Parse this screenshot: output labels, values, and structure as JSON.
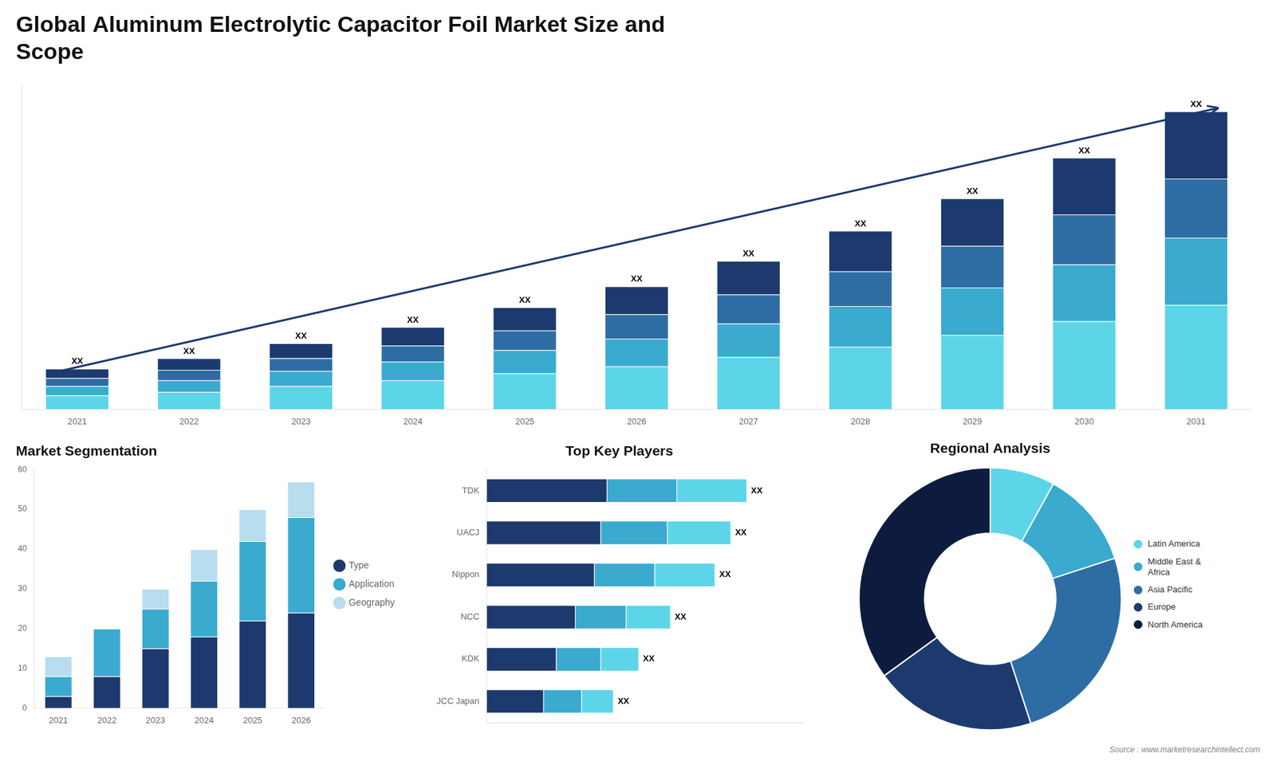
{
  "chart_data": [
    {
      "type": "bar",
      "title": [
        "Global Aluminum Electrolytic Capacitor Foil Market Size and",
        "Scope"
      ],
      "stacked": true,
      "categories": [
        "2021",
        "2022",
        "2023",
        "2024",
        "2025",
        "2026",
        "2027",
        "2028",
        "2029",
        "2030",
        "2031"
      ],
      "series": [
        {
          "color": "#5dd5e8",
          "values": [
            1.2,
            1.5,
            2.0,
            2.5,
            3.1,
            3.7,
            4.5,
            5.4,
            6.4,
            7.6,
            9.0
          ]
        },
        {
          "color": "#3aaacf",
          "values": [
            0.8,
            1.0,
            1.3,
            1.6,
            2.0,
            2.4,
            2.9,
            3.5,
            4.1,
            4.9,
            5.8
          ]
        },
        {
          "color": "#2e6da4",
          "values": [
            0.7,
            0.9,
            1.1,
            1.4,
            1.7,
            2.1,
            2.5,
            3.0,
            3.6,
            4.3,
            5.1
          ]
        },
        {
          "color": "#1c3a6e",
          "values": [
            0.8,
            1.0,
            1.3,
            1.6,
            2.0,
            2.4,
            2.9,
            3.5,
            4.1,
            4.9,
            5.8
          ]
        }
      ],
      "ylim": [
        0,
        28
      ],
      "tick_labels": "x",
      "grid": false,
      "annotations": [
        {
          "text": "XX",
          "x": "2021"
        },
        {
          "text": "XX",
          "x": "2022"
        },
        {
          "text": "XX",
          "x": "2023"
        },
        {
          "text": "XX",
          "x": "2024"
        },
        {
          "text": "XX",
          "x": "2025"
        },
        {
          "text": "XX",
          "x": "2026"
        },
        {
          "text": "XX",
          "x": "2027"
        },
        {
          "text": "XX",
          "x": "2028"
        },
        {
          "text": "XX",
          "x": "2029"
        },
        {
          "text": "XX",
          "x": "2030"
        },
        {
          "text": "XX",
          "x": "2031"
        },
        {
          "arrow": {
            "x": [
              -0.2,
              10.2
            ],
            "y": [
              3.2,
              26
            ]
          }
        }
      ]
    },
    {
      "type": "bar",
      "title": "Market Segmentation",
      "stacked": true,
      "categories": [
        "2021",
        "2022",
        "2023",
        "2024",
        "2025",
        "2026"
      ],
      "series": [
        {
          "name": "Type",
          "color": "#1c3a6e",
          "values": [
            3,
            8,
            15,
            18,
            22,
            24
          ]
        },
        {
          "name": "Application",
          "color": "#3aaacf",
          "values": [
            5,
            12,
            10,
            14,
            20,
            24
          ]
        },
        {
          "name": "Geography",
          "color": "#b8ddef",
          "values": [
            5,
            0,
            5,
            8,
            8,
            9
          ]
        }
      ],
      "ylim": [
        0,
        60
      ],
      "yticks": [
        0,
        10,
        20,
        30,
        40,
        50,
        60
      ],
      "legend": "right",
      "grid": false
    },
    {
      "type": "bar",
      "title": "Top Key Players",
      "orientation": "horizontal",
      "stacked": true,
      "categories": [
        "TDK",
        "UACJ",
        "Nippon",
        "NCC",
        "KDK",
        "JCC Japan"
      ],
      "series": [
        {
          "color": "#1c3a6e",
          "values": [
            0.38,
            0.36,
            0.34,
            0.28,
            0.22,
            0.18
          ]
        },
        {
          "color": "#3aaacf",
          "values": [
            0.22,
            0.21,
            0.19,
            0.16,
            0.14,
            0.12
          ]
        },
        {
          "color": "#5dd5e8",
          "values": [
            0.22,
            0.2,
            0.19,
            0.14,
            0.12,
            0.1
          ]
        }
      ],
      "xlim": [
        0,
        1.0
      ],
      "tick_labels": "y",
      "grid": false,
      "annotations": [
        {
          "text": "XX",
          "y": "TDK"
        },
        {
          "text": "XX",
          "y": "UACJ"
        },
        {
          "text": "XX",
          "y": "Nippon"
        },
        {
          "text": "XX",
          "y": "NCC"
        },
        {
          "text": "XX",
          "y": "KDK"
        },
        {
          "text": "XX",
          "y": "JCC Japan"
        }
      ]
    },
    {
      "type": "doughnut",
      "title": "Regional Analysis",
      "categories": [
        "Latin America",
        "Middle East &\nAfrica",
        "Asia Pacific",
        "Europe",
        "North America"
      ],
      "values": [
        8,
        12,
        25,
        20,
        35
      ],
      "colors": [
        "#5dd5e8",
        "#3aaacf",
        "#2e6da4",
        "#1c3a6e",
        "#0d1b3e"
      ],
      "legend": "right",
      "annotations": [
        "Source : www.marketresearchintellect.com"
      ]
    }
  ]
}
